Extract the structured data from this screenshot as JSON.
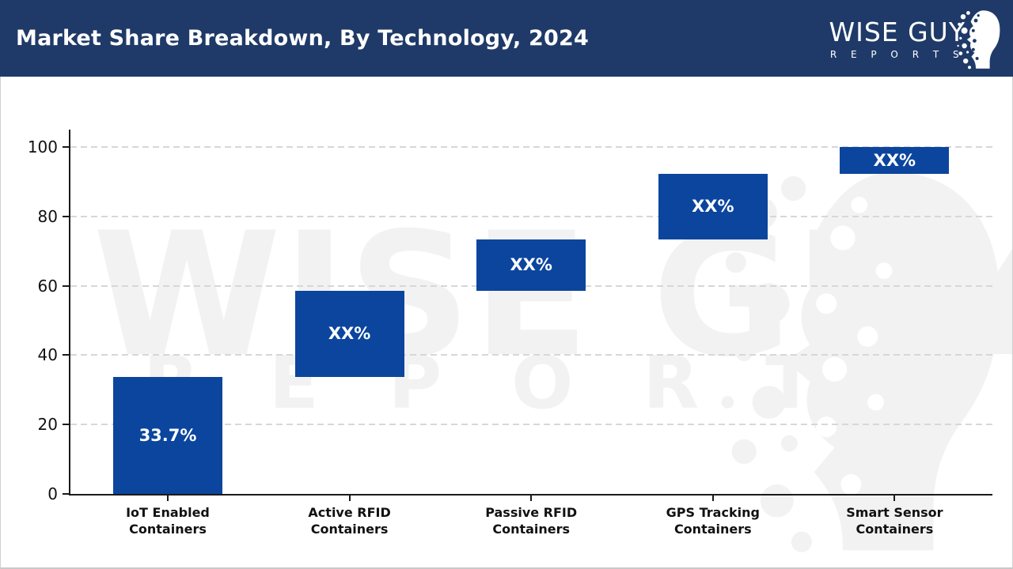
{
  "header": {
    "title": "Market Share Breakdown, By Technology, 2024",
    "background_color": "#1f3a68",
    "logo": {
      "name": "WISE GUY",
      "subtitle": "R E P O R T S"
    }
  },
  "watermark": {
    "wordmark": "WISE GUY",
    "subtitle": "REPORTS"
  },
  "chart_data": {
    "type": "bar",
    "subtype": "floating-segment-waterfall",
    "title": "Market Share Breakdown, By Technology, 2024",
    "categories": [
      "IoT Enabled Containers",
      "Active RFID Containers",
      "Passive RFID Containers",
      "GPS Tracking Containers",
      "Smart Sensor Containers"
    ],
    "segments": [
      {
        "category": "IoT Enabled Containers",
        "label": "33.7%",
        "start": 0,
        "end": 33.7
      },
      {
        "category": "Active RFID Containers",
        "label": "XX%",
        "start": 33.7,
        "end": 58.6
      },
      {
        "category": "Passive RFID Containers",
        "label": "XX%",
        "start": 58.6,
        "end": 73.4
      },
      {
        "category": "GPS Tracking Containers",
        "label": "XX%",
        "start": 73.4,
        "end": 92.3
      },
      {
        "category": "Smart Sensor Containers",
        "label": "XX%",
        "start": 92.3,
        "end": 100
      }
    ],
    "yticks": [
      0,
      20,
      40,
      60,
      80,
      100
    ],
    "ylim": [
      0,
      105
    ],
    "xlabel": "",
    "ylabel": "",
    "grid": "horizontal-dashed",
    "legend": "none",
    "bar_color": "#0b459e",
    "bar_label_color": "#ffffff",
    "value_label_color_first": "#ffffff",
    "axis_color": "#1a1a1a",
    "gridline_color": "#d7d7d7"
  }
}
